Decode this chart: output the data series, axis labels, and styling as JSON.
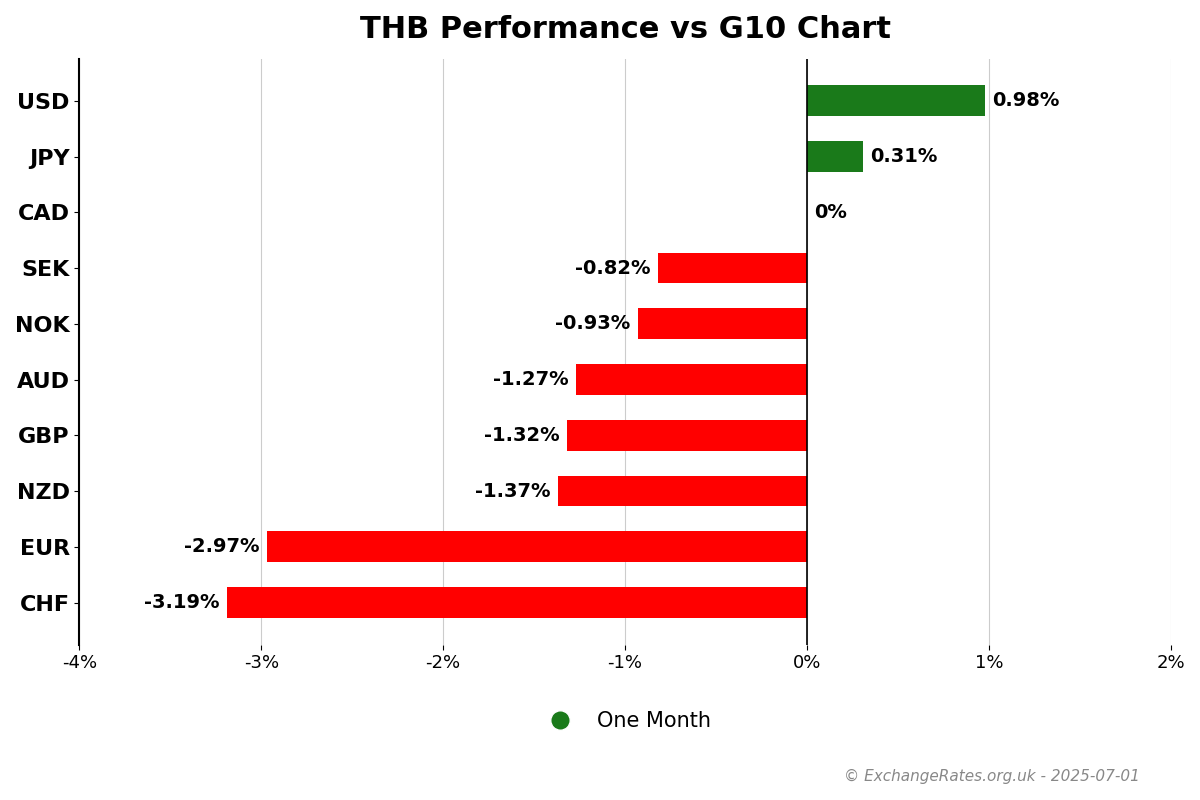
{
  "title": "THB Performance vs G10 Chart",
  "currencies": [
    "USD",
    "JPY",
    "CAD",
    "SEK",
    "NOK",
    "AUD",
    "GBP",
    "NZD",
    "EUR",
    "CHF"
  ],
  "values": [
    0.98,
    0.31,
    0.0,
    -0.82,
    -0.93,
    -1.27,
    -1.32,
    -1.37,
    -2.97,
    -3.19
  ],
  "labels": [
    "0.98%",
    "0.31%",
    "0%",
    "-0.82%",
    "-0.93%",
    "-1.27%",
    "-1.32%",
    "-1.37%",
    "-2.97%",
    "-3.19%"
  ],
  "positive_color": "#1a7a1a",
  "negative_color": "#ff0000",
  "bar_height": 0.55,
  "xlim": [
    -4.0,
    2.0
  ],
  "xticks": [
    -4,
    -3,
    -2,
    -1,
    0,
    1,
    2
  ],
  "xtick_labels": [
    "-4%",
    "-3%",
    "-2%",
    "-1%",
    "0%",
    "1%",
    "2%"
  ],
  "legend_label": "One Month",
  "legend_color": "#1a7a1a",
  "copyright_text": "© ExchangeRates.org.uk - 2025-07-01",
  "background_color": "#ffffff",
  "title_fontsize": 22,
  "label_fontsize": 14,
  "tick_fontsize": 13,
  "legend_fontsize": 15,
  "copyright_fontsize": 11
}
